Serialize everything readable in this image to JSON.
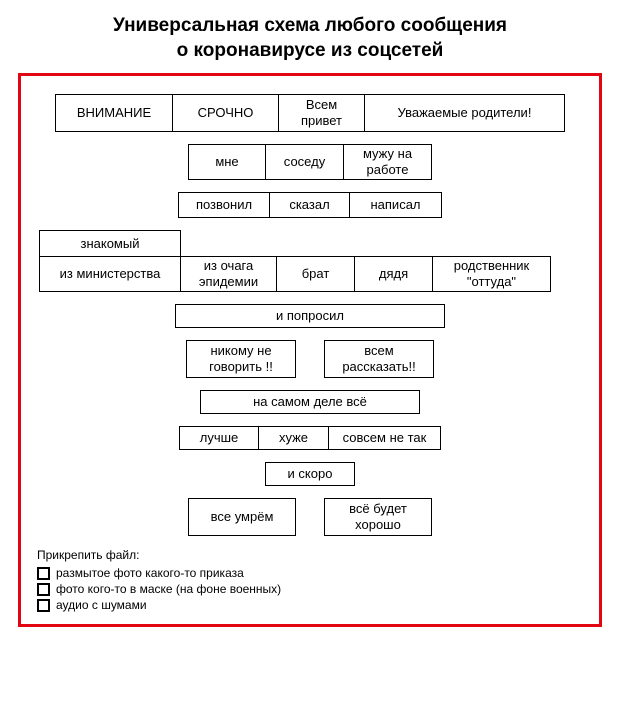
{
  "title_line1": "Универсальная схема любого сообщения",
  "title_line2": "о коронавирусе из соцсетей",
  "colors": {
    "frame_border": "#e20613",
    "cell_border": "#000000",
    "background": "#ffffff",
    "text": "#000000"
  },
  "rows": {
    "r1": [
      "ВНИМАНИЕ",
      "СРОЧНО",
      "Всем\nпривет",
      "Уважаемые родители!"
    ],
    "r2": [
      "мне",
      "соседу",
      "мужу на\nработе"
    ],
    "r3": [
      "позвонил",
      "сказал",
      "написал"
    ],
    "r4_top": "знакомый",
    "r4_bot": [
      "из министерства",
      "из очага\nэпидемии",
      "брат",
      "дядя",
      "родственник\n\"оттуда\""
    ],
    "r5": "и попросил",
    "r6": [
      "никому не\nговорить !!",
      "всем\nрассказать!!"
    ],
    "r7": "на самом деле всё",
    "r8": [
      "лучше",
      "хуже",
      "совсем не так"
    ],
    "r9": "и скоро",
    "r10": [
      "все умрём",
      "всё будет\nхорошо"
    ]
  },
  "attach": {
    "title": "Прикрепить файл:",
    "items": [
      "размытое фото какого-то приказа",
      "фото кого-то в маске (на фоне военных)",
      "аудио с шумами"
    ]
  }
}
